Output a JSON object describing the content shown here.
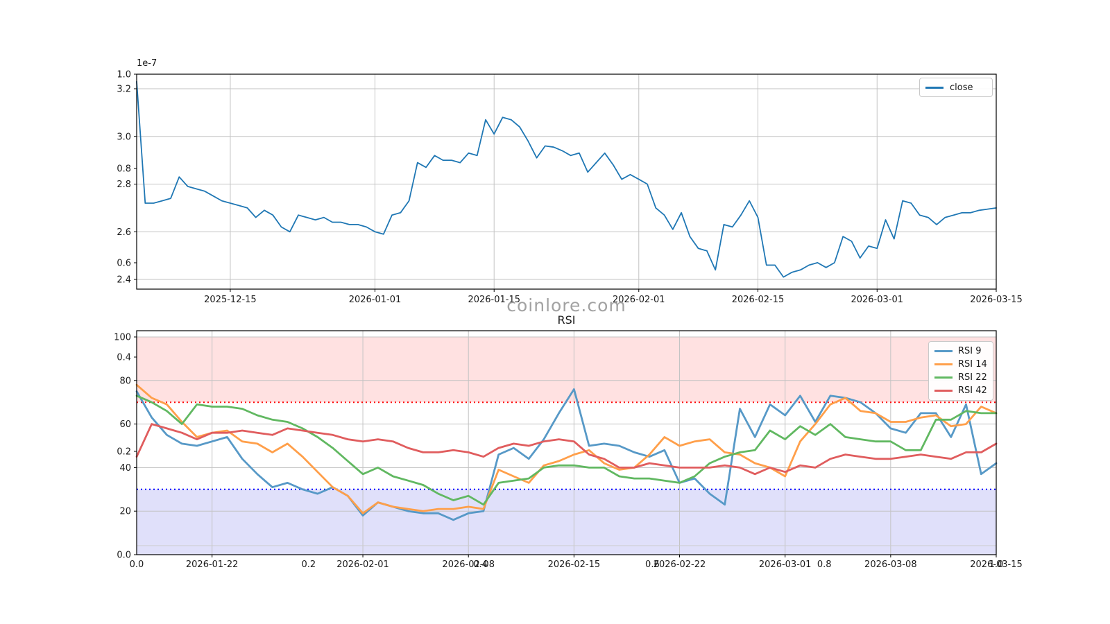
{
  "watermark": "coinlore.com",
  "colors": {
    "grid": "#c3c3c3",
    "spine": "#000000",
    "text": "#1a1a1a",
    "hidden_spine": "#cccccc",
    "watermark": "#999999"
  },
  "top_chart": {
    "type": "line",
    "offset_text": "1e-7",
    "x_start": "2025-12-04",
    "x_tick_labels": [
      "2025-12-15",
      "2026-01-01",
      "2026-01-15",
      "2026-02-01",
      "2026-02-15",
      "2026-03-01",
      "2026-03-15"
    ],
    "y_tick_labels": [
      "2.4",
      "2.6",
      "2.8",
      "3.0",
      "3.2"
    ],
    "ylim": [
      2.359,
      3.261
    ],
    "series": [
      {
        "name": "close",
        "color": "#1f77b4",
        "values": [
          3.23,
          2.72,
          2.72,
          2.73,
          2.74,
          2.83,
          2.79,
          2.78,
          2.77,
          2.75,
          2.73,
          2.72,
          2.71,
          2.7,
          2.66,
          2.69,
          2.67,
          2.62,
          2.6,
          2.67,
          2.66,
          2.65,
          2.66,
          2.64,
          2.64,
          2.63,
          2.63,
          2.62,
          2.6,
          2.59,
          2.67,
          2.68,
          2.73,
          2.89,
          2.87,
          2.92,
          2.9,
          2.9,
          2.89,
          2.93,
          2.92,
          3.07,
          3.01,
          3.08,
          3.07,
          3.04,
          2.98,
          2.91,
          2.96,
          2.955,
          2.94,
          2.92,
          2.93,
          2.85,
          2.89,
          2.93,
          2.88,
          2.82,
          2.84,
          2.82,
          2.8,
          2.7,
          2.67,
          2.61,
          2.68,
          2.58,
          2.53,
          2.52,
          2.44,
          2.63,
          2.62,
          2.67,
          2.73,
          2.66,
          2.46,
          2.46,
          2.41,
          2.43,
          2.44,
          2.46,
          2.47,
          2.45,
          2.47,
          2.58,
          2.56,
          2.49,
          2.54,
          2.53,
          2.65,
          2.57,
          2.73,
          2.72,
          2.67,
          2.66,
          2.63,
          2.66,
          2.67,
          2.68,
          2.68,
          2.69,
          2.695,
          2.7
        ]
      }
    ]
  },
  "bottom_chart": {
    "type": "line",
    "title": "RSI",
    "x_start": "2026-01-17",
    "x_tick_labels": [
      "2026-01-22",
      "2026-02-01",
      "2026-02-08",
      "2026-02-15",
      "2026-02-22",
      "2026-03-01",
      "2026-03-08",
      "2026-03-15"
    ],
    "y_tick_labels": [
      "0.0",
      "20",
      "40",
      "60",
      "80",
      "100"
    ],
    "ylim": [
      0,
      103
    ],
    "thresholds": {
      "overbought": 70,
      "oversold": 30,
      "overbought_color": "#ff0000",
      "oversold_color": "#0000ff",
      "overbought_band": "#ffe1e1",
      "oversold_band": "#e0e0fa"
    },
    "series": [
      {
        "name": "RSI 9",
        "color": "#5799c7",
        "values": [
          75,
          63,
          55,
          51,
          50,
          52,
          54,
          44,
          37,
          31,
          33,
          30,
          28,
          31,
          27,
          18,
          24,
          22,
          20,
          19,
          19,
          16,
          19,
          20,
          46,
          49,
          44,
          53,
          65,
          76,
          50,
          51,
          50,
          47,
          45,
          48,
          33,
          35,
          28,
          23,
          67,
          54,
          69,
          64,
          73,
          61,
          73,
          72,
          70,
          65,
          58,
          56,
          65,
          65,
          54,
          69,
          37,
          42
        ]
      },
      {
        "name": "RSI 14",
        "color": "#ff9f4a",
        "values": [
          78,
          72,
          69,
          61,
          54,
          56,
          57,
          52,
          51,
          47,
          51,
          45,
          38,
          31,
          27,
          19,
          24,
          22,
          21,
          20,
          21,
          21,
          22,
          21,
          39,
          36,
          33,
          41,
          43,
          46,
          48,
          42,
          39,
          40,
          46,
          54,
          50,
          52,
          53,
          47,
          46,
          42,
          40,
          36,
          52,
          60,
          69,
          72,
          66,
          65,
          61,
          61,
          63,
          64,
          59,
          60,
          68,
          65
        ]
      },
      {
        "name": "RSI 22",
        "color": "#61b861",
        "values": [
          73,
          70,
          66,
          60,
          69,
          68,
          68,
          67,
          64,
          62,
          61,
          58,
          54,
          49,
          43,
          37,
          40,
          36,
          34,
          32,
          28,
          25,
          27,
          23,
          33,
          34,
          35,
          40,
          41,
          41,
          40,
          40,
          36,
          35,
          35,
          34,
          33,
          36,
          42,
          45,
          47,
          48,
          57,
          53,
          59,
          55,
          60,
          54,
          53,
          52,
          52,
          48,
          48,
          62,
          62,
          66,
          65,
          65
        ]
      },
      {
        "name": "RSI 42",
        "color": "#e05d5e",
        "values": [
          45,
          60,
          58,
          56,
          53,
          56,
          56,
          57,
          56,
          55,
          58,
          57,
          56,
          55,
          53,
          52,
          53,
          52,
          49,
          47,
          47,
          48,
          47,
          45,
          49,
          51,
          50,
          52,
          53,
          52,
          46,
          44,
          40,
          40,
          42,
          41,
          40,
          40,
          40,
          41,
          40,
          37,
          40,
          38,
          41,
          40,
          44,
          46,
          45,
          44,
          44,
          45,
          46,
          45,
          44,
          47,
          47,
          51
        ]
      }
    ]
  },
  "hidden_axes": {
    "x_tick_labels": [
      "0.0",
      "0.2",
      "0.4",
      "0.6",
      "0.8",
      "1.0"
    ],
    "y_tick_labels": [
      "1.0",
      "0.8",
      "0.6",
      "0.4",
      "0.2"
    ]
  }
}
